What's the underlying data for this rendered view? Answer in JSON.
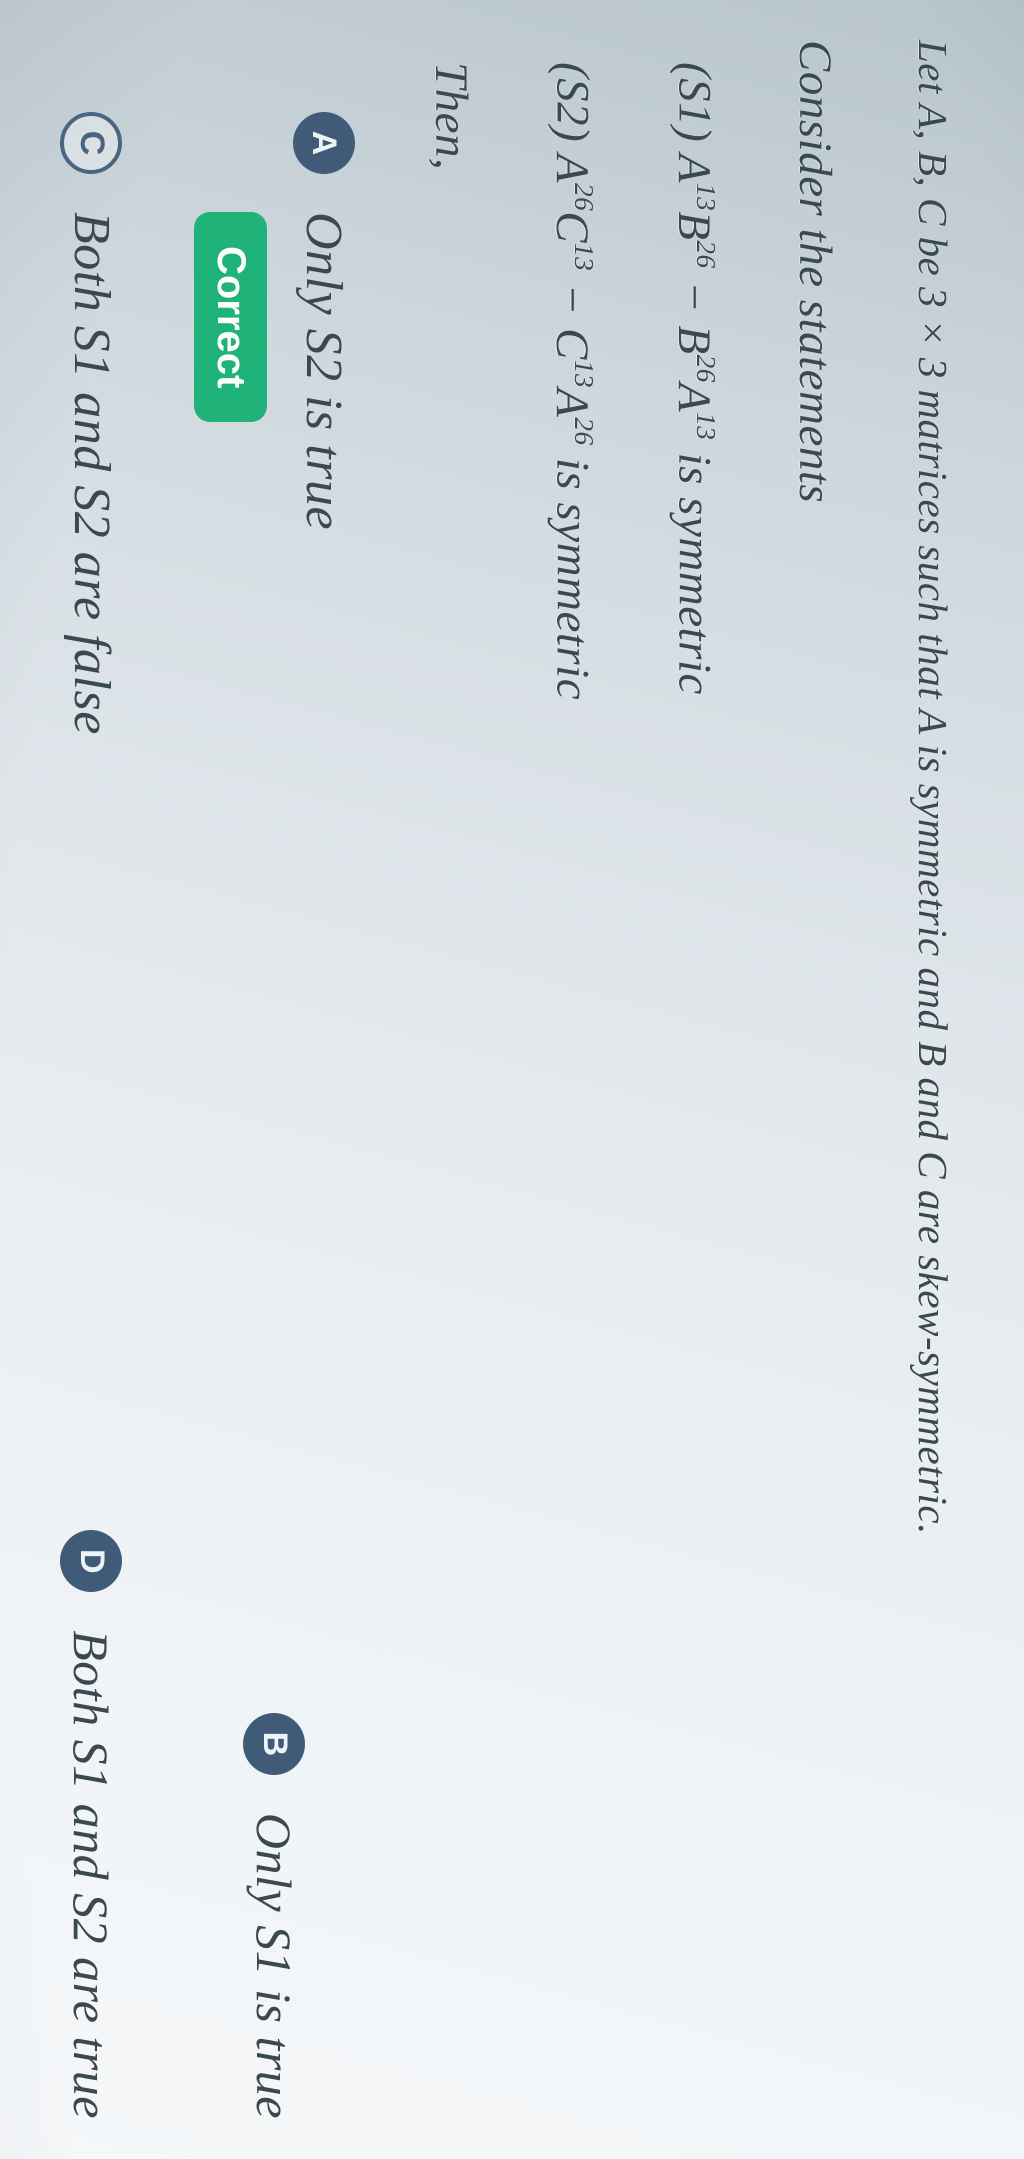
{
  "colors": {
    "bg_start": "#b8c4cc",
    "bg_end": "#f5f7f9",
    "text": "#3a4850",
    "circle_fill": "#3f5b78",
    "circle_fill_text": "#eef3f7",
    "circle_outline": "#4a6580",
    "badge_bg": "#1fb37a",
    "badge_text": "#ffffff"
  },
  "typography": {
    "body_font": "Georgia / serif italic",
    "badge_font": "Arial / sans-serif",
    "intro_size_pt": 31,
    "stmt_size_pt": 35,
    "option_size_pt": 39
  },
  "question": {
    "intro": "Let A, B, C be 3 × 3 matrices such that A is symmetric and B and C are skew-symmetric.",
    "consider": "Consider the statements",
    "s1_label": "(S1) ",
    "s1_tail": " is symmetric",
    "s2_label": "(S2) ",
    "s2_tail": " is symmetric",
    "then": "Then,",
    "expr": {
      "A": "A",
      "B": "B",
      "C": "C",
      "p13": "13",
      "p26": "26",
      "minus": " − "
    }
  },
  "options": {
    "A": {
      "letter": "A",
      "text": "Only S2 is true",
      "style": "filled"
    },
    "B": {
      "letter": "B",
      "text": "Only S1 is true",
      "style": "filled"
    },
    "C": {
      "letter": "C",
      "text": "Both S1 and S2 are false",
      "style": "outline"
    },
    "D": {
      "letter": "D",
      "text": "Both S1 and S2 are true",
      "style": "filled"
    }
  },
  "badge": {
    "text": "Correct",
    "applies_to": "A"
  }
}
